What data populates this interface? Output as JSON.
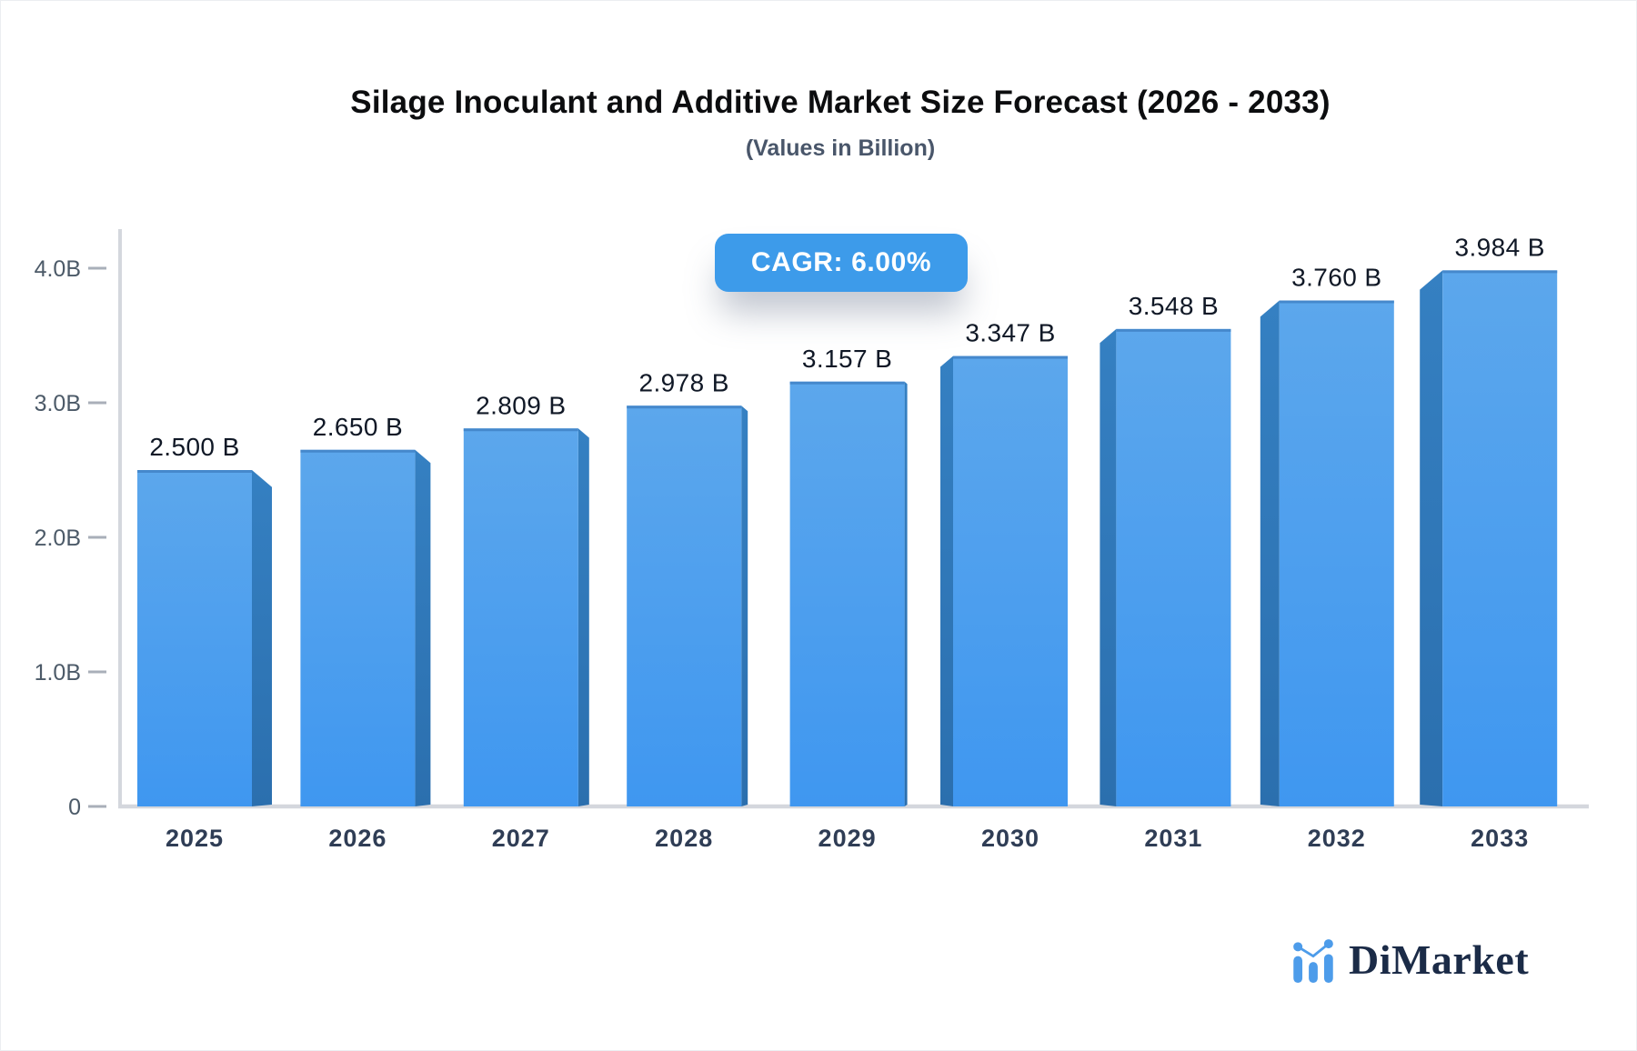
{
  "header": {
    "title": "Silage Inoculant and Additive Market Size Forecast (2026 - 2033)",
    "subtitle": "(Values in Billion)"
  },
  "badge": {
    "label": "CAGR: 6.00%"
  },
  "brand": {
    "name": "DiMarket",
    "icon": "bar-chart-logo-icon"
  },
  "colors": {
    "accent_blue": "#3d9bea",
    "bar_face_top": "#5ca7ec",
    "bar_face_bottom": "#3f97f0",
    "bar_side_top": "#3580c2",
    "bar_side_bottom": "#2b6fae",
    "bar_top_edge": "#4588cc",
    "axis_line": "#d4d7dd",
    "tick_mark": "#a9afb9",
    "y_label": "#4c5a68",
    "x_label": "#2f3d55",
    "value_label": "#101826",
    "logo_navy": "#1b2b47",
    "logo_blue": "#4d9cea"
  },
  "chart_data": {
    "type": "bar",
    "title": "Silage Inoculant and Additive Market Size Forecast (2026 - 2033)",
    "subtitle": "(Values in Billion)",
    "categories": [
      "2025",
      "2026",
      "2027",
      "2028",
      "2029",
      "2030",
      "2031",
      "2032",
      "2033"
    ],
    "values": [
      2.5,
      2.65,
      2.809,
      2.978,
      3.157,
      3.347,
      3.548,
      3.76,
      3.984
    ],
    "value_labels": [
      "2.500 B",
      "2.650 B",
      "2.809 B",
      "2.978 B",
      "3.157 B",
      "3.347 B",
      "3.548 B",
      "3.760 B",
      "3.984 B"
    ],
    "unit": "Billion",
    "cagr": "6.00%",
    "xlabel": "",
    "ylabel": "",
    "ylim": [
      0,
      4.0
    ],
    "ytick_labels": [
      "0",
      "1.0B",
      "2.0B",
      "3.0B",
      "4.0B"
    ],
    "ytick_values": [
      0,
      1.0,
      2.0,
      3.0,
      4.0
    ],
    "grid": false,
    "legend": false,
    "style": "3d-perspective-bars"
  }
}
